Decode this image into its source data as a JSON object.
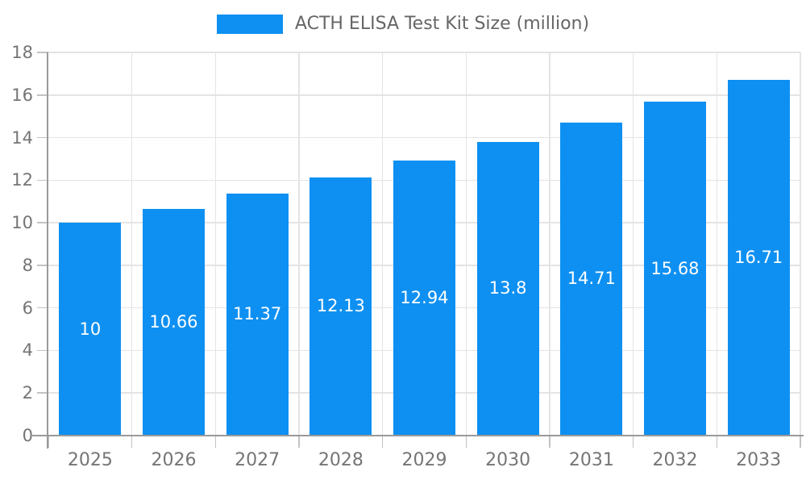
{
  "chart_data": {
    "type": "bar",
    "title": "ACTH ELISA Test Kit Size (million)",
    "categories": [
      "2025",
      "2026",
      "2027",
      "2028",
      "2029",
      "2030",
      "2031",
      "2032",
      "2033"
    ],
    "values": [
      10,
      10.66,
      11.37,
      12.13,
      12.94,
      13.8,
      14.71,
      15.68,
      16.71
    ],
    "value_labels": [
      "10",
      "10.66",
      "11.37",
      "12.13",
      "12.94",
      "13.8",
      "14.71",
      "15.68",
      "16.71"
    ],
    "xlabel": "",
    "ylabel": "",
    "ylim": [
      0,
      18
    ],
    "ytick_step": 2,
    "ytick_labels": [
      "0",
      "2",
      "4",
      "6",
      "8",
      "10",
      "12",
      "14",
      "16",
      "18"
    ],
    "grid": true,
    "legend_position": "top-center",
    "bar_color": "#0e90f2",
    "value_label_color": "#ffffff",
    "axis_label_color": "#757575",
    "legend_text_color": "#666666",
    "gridline_color": "#e4e4e4",
    "axis_line_color": "#9a9a9a"
  }
}
